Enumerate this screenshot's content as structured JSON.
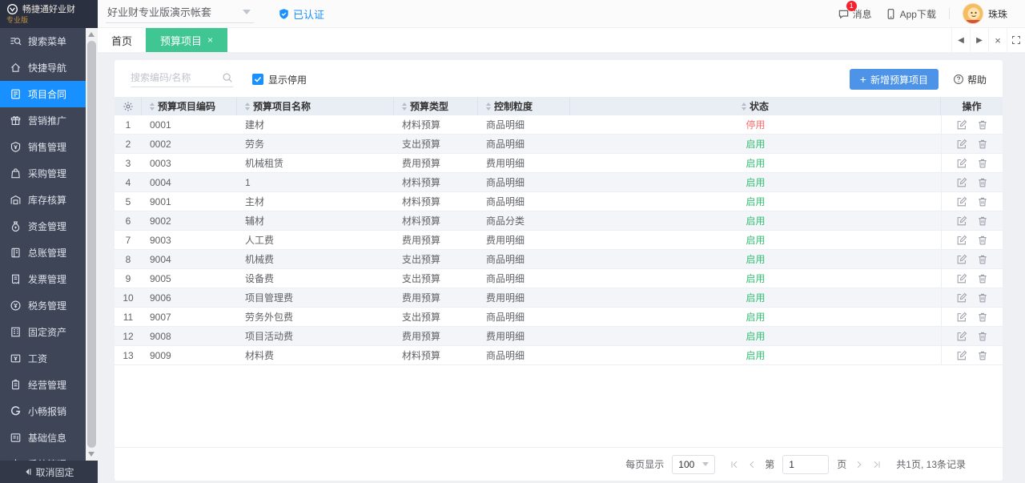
{
  "brand": {
    "title": "畅捷通好业财",
    "edition": "专业版"
  },
  "topbar": {
    "account": "好业财专业版演示帐套",
    "certified": "已认证",
    "messages": "消息",
    "message_count": "1",
    "app_download": "App下载",
    "username": "珠珠"
  },
  "tabbar": {
    "home": "首页",
    "active_tab": "预算项目",
    "close": "×"
  },
  "sidebar": {
    "unpin": "取消固定",
    "items": [
      {
        "label": "搜索菜单",
        "icon": "search",
        "active": false
      },
      {
        "label": "快捷导航",
        "icon": "nav",
        "active": false
      },
      {
        "label": "项目合同",
        "icon": "contract",
        "active": true
      },
      {
        "label": "营销推广",
        "icon": "marketing",
        "active": false
      },
      {
        "label": "销售管理",
        "icon": "sales",
        "active": false
      },
      {
        "label": "采购管理",
        "icon": "purchase",
        "active": false
      },
      {
        "label": "库存核算",
        "icon": "inventory",
        "active": false
      },
      {
        "label": "资金管理",
        "icon": "funds",
        "active": false
      },
      {
        "label": "总账管理",
        "icon": "ledger",
        "active": false
      },
      {
        "label": "发票管理",
        "icon": "invoice",
        "active": false
      },
      {
        "label": "税务管理",
        "icon": "tax",
        "active": false
      },
      {
        "label": "固定资产",
        "icon": "assets",
        "active": false
      },
      {
        "label": "工资",
        "icon": "payroll",
        "active": false
      },
      {
        "label": "经营管理",
        "icon": "operation",
        "active": false
      },
      {
        "label": "小畅报销",
        "icon": "reimburse",
        "active": false
      },
      {
        "label": "基础信息",
        "icon": "baseinfo",
        "active": false
      },
      {
        "label": "系统管理",
        "icon": "system",
        "active": false
      }
    ]
  },
  "toolbar": {
    "search_placeholder": "搜索编码/名称",
    "show_disabled_label": "显示停用",
    "add_button": "新增预算项目",
    "help": "帮助"
  },
  "table": {
    "headers": {
      "code": "预算项目编码",
      "name": "预算项目名称",
      "type": "预算类型",
      "granularity": "控制粒度",
      "status": "状态",
      "actions": "操作"
    },
    "rows": [
      {
        "num": "1",
        "code": "0001",
        "name": "建材",
        "type": "材料预算",
        "granularity": "商品明细",
        "status": "停用",
        "enabled": false
      },
      {
        "num": "2",
        "code": "0002",
        "name": "劳务",
        "type": "支出预算",
        "granularity": "商品明细",
        "status": "启用",
        "enabled": true
      },
      {
        "num": "3",
        "code": "0003",
        "name": "机械租赁",
        "type": "费用预算",
        "granularity": "费用明细",
        "status": "启用",
        "enabled": true
      },
      {
        "num": "4",
        "code": "0004",
        "name": "1",
        "type": "材料预算",
        "granularity": "商品明细",
        "status": "启用",
        "enabled": true
      },
      {
        "num": "5",
        "code": "9001",
        "name": "主材",
        "type": "材料预算",
        "granularity": "商品明细",
        "status": "启用",
        "enabled": true
      },
      {
        "num": "6",
        "code": "9002",
        "name": "辅材",
        "type": "材料预算",
        "granularity": "商品分类",
        "status": "启用",
        "enabled": true
      },
      {
        "num": "7",
        "code": "9003",
        "name": "人工费",
        "type": "费用预算",
        "granularity": "费用明细",
        "status": "启用",
        "enabled": true
      },
      {
        "num": "8",
        "code": "9004",
        "name": "机械费",
        "type": "支出预算",
        "granularity": "商品明细",
        "status": "启用",
        "enabled": true
      },
      {
        "num": "9",
        "code": "9005",
        "name": "设备费",
        "type": "支出预算",
        "granularity": "商品明细",
        "status": "启用",
        "enabled": true
      },
      {
        "num": "10",
        "code": "9006",
        "name": "项目管理费",
        "type": "费用预算",
        "granularity": "费用明细",
        "status": "启用",
        "enabled": true
      },
      {
        "num": "11",
        "code": "9007",
        "name": "劳务外包费",
        "type": "支出预算",
        "granularity": "商品明细",
        "status": "启用",
        "enabled": true
      },
      {
        "num": "12",
        "code": "9008",
        "name": "项目活动费",
        "type": "费用预算",
        "granularity": "费用明细",
        "status": "启用",
        "enabled": true
      },
      {
        "num": "13",
        "code": "9009",
        "name": "材料费",
        "type": "材料预算",
        "granularity": "商品明细",
        "status": "启用",
        "enabled": true
      }
    ]
  },
  "pagination": {
    "per_page_label": "每页显示",
    "per_page": "100",
    "page_label_prefix": "第",
    "page_value": "1",
    "page_label_suffix": "页",
    "total": "共1页, 13条记录"
  },
  "colors": {
    "accent_blue": "#1890ff",
    "button_blue": "#4d94e8",
    "tab_green": "#3fc692",
    "enabled_green": "#34c073",
    "disabled_red": "#f56c6c",
    "sidebar_bg": "#3e4557",
    "header_row_bg": "#e9edf4"
  }
}
